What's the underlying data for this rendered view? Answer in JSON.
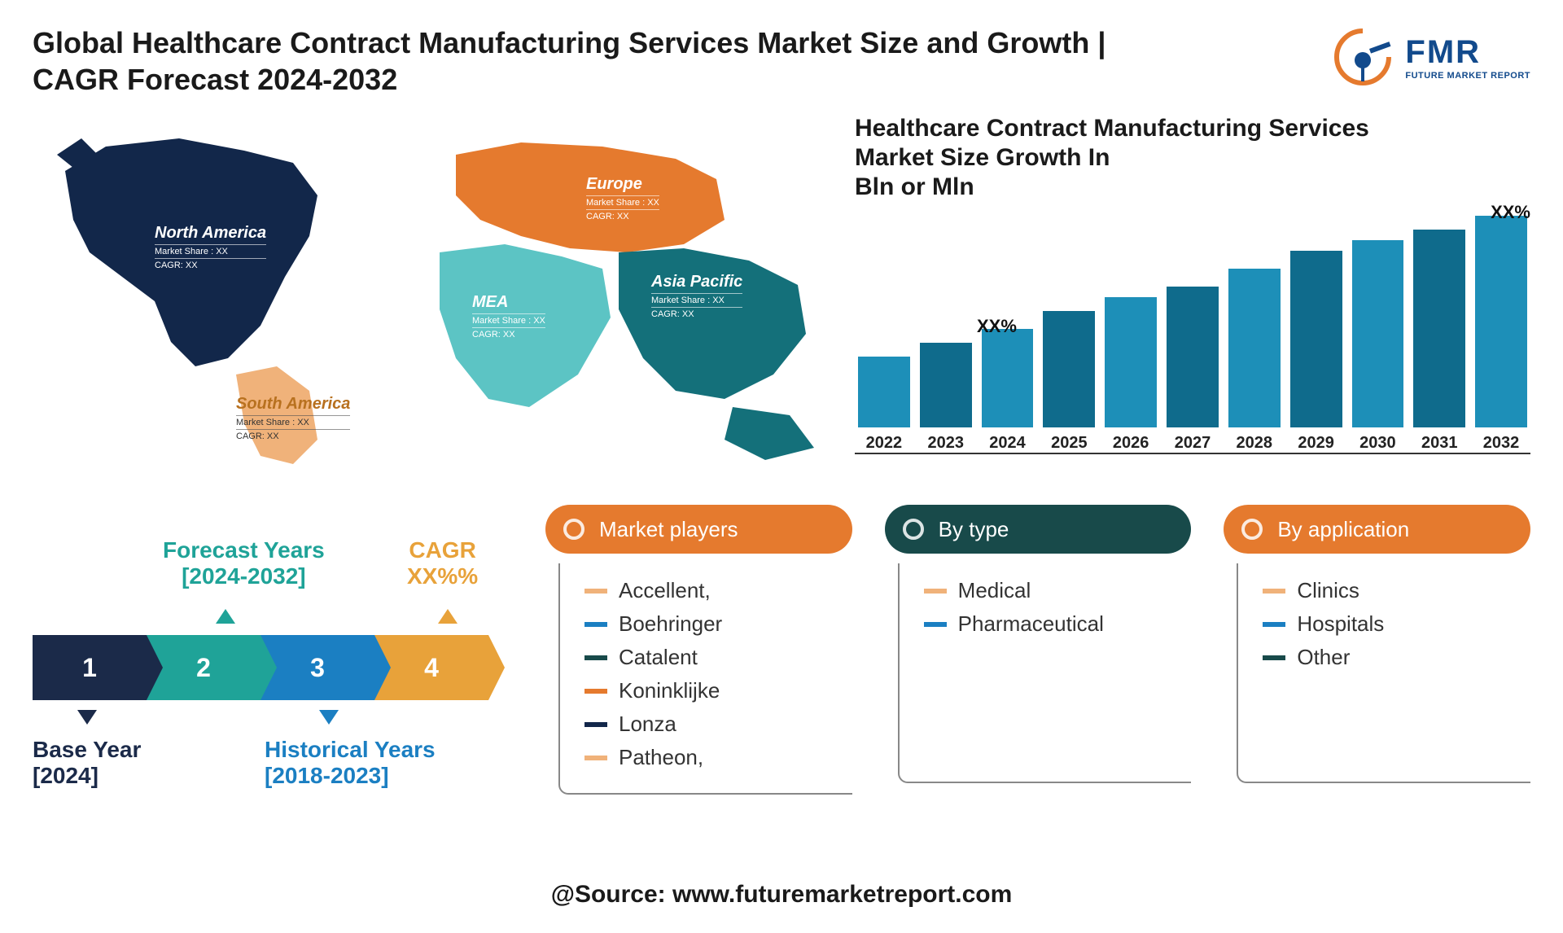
{
  "title": "Global Healthcare Contract Manufacturing Services Market Size and Growth | CAGR Forecast 2024-2032",
  "logo": {
    "fmr": "FMR",
    "sub": "FUTURE MARKET REPORT"
  },
  "map": {
    "regions": {
      "north_america": {
        "name": "North America",
        "share": "Market Share : XX",
        "cagr": "CAGR: XX",
        "color": "#12274a"
      },
      "south_america": {
        "name": "South America",
        "share": "Market Share : XX",
        "cagr": "CAGR: XX",
        "color": "#f0b27a"
      },
      "europe": {
        "name": "Europe",
        "share": "Market Share : XX",
        "cagr": "CAGR: XX",
        "color": "#e57a2e"
      },
      "mea": {
        "name": "MEA",
        "share": "Market Share : XX",
        "cagr": "CAGR: XX",
        "color": "#5cc4c4"
      },
      "asia_pacific": {
        "name": "Asia Pacific",
        "share": "Market Share : XX",
        "cagr": "CAGR: XX",
        "color": "#14707a"
      }
    }
  },
  "chart": {
    "title_l1": "Healthcare Contract Manufacturing Services",
    "title_l2": "Market Size Growth In",
    "title_l3": "Bln or Mln",
    "years": [
      "2022",
      "2023",
      "2024",
      "2025",
      "2026",
      "2027",
      "2028",
      "2029",
      "2030",
      "2031",
      "2032"
    ],
    "values": [
      100,
      120,
      140,
      165,
      185,
      200,
      225,
      250,
      265,
      280,
      300
    ],
    "bar_color": "#1d8fb8",
    "bar_alt_color": "#0f6b8c",
    "dark_indices": [
      1,
      3,
      5,
      7,
      9
    ],
    "start_label": "XX%",
    "end_label": "XX%",
    "axis_color": "#333333",
    "label_fontsize": 20
  },
  "timeline": {
    "seg1": "1",
    "seg2": "2",
    "seg3": "3",
    "seg4": "4",
    "colors": {
      "1": "#1b2a49",
      "2": "#1fa398",
      "3": "#1b7fc2",
      "4": "#e8a23a"
    },
    "forecast_title": "Forecast Years",
    "forecast_range": "[2024-2032]",
    "cagr_title": "CAGR",
    "cagr_value": "XX%%",
    "base_title": "Base Year",
    "base_range": "[2024]",
    "hist_title": "Historical Years",
    "hist_range": "[2018-2023]"
  },
  "segments": {
    "players": {
      "header": "Market players",
      "header_color": "#e57a2e",
      "items": [
        {
          "label": "Accellent,",
          "dash": "#f0b27a"
        },
        {
          "label": "Boehringer",
          "dash": "#1b7fc2"
        },
        {
          "label": "Catalent",
          "dash": "#184a4a"
        },
        {
          "label": "Koninklijke",
          "dash": "#e57a2e"
        },
        {
          "label": "Lonza",
          "dash": "#12274a"
        },
        {
          "label": "Patheon,",
          "dash": "#f0b27a"
        }
      ]
    },
    "type": {
      "header": "By type",
      "header_color": "#184a4a",
      "items": [
        {
          "label": "Medical",
          "dash": "#f0b27a"
        },
        {
          "label": "Pharmaceutical",
          "dash": "#1b7fc2"
        }
      ]
    },
    "application": {
      "header": "By application",
      "header_color": "#e57a2e",
      "items": [
        {
          "label": "Clinics",
          "dash": "#f0b27a"
        },
        {
          "label": "Hospitals",
          "dash": "#1b7fc2"
        },
        {
          "label": "Other",
          "dash": "#184a4a"
        }
      ]
    }
  },
  "source": "@Source: www.futuremarketreport.com"
}
